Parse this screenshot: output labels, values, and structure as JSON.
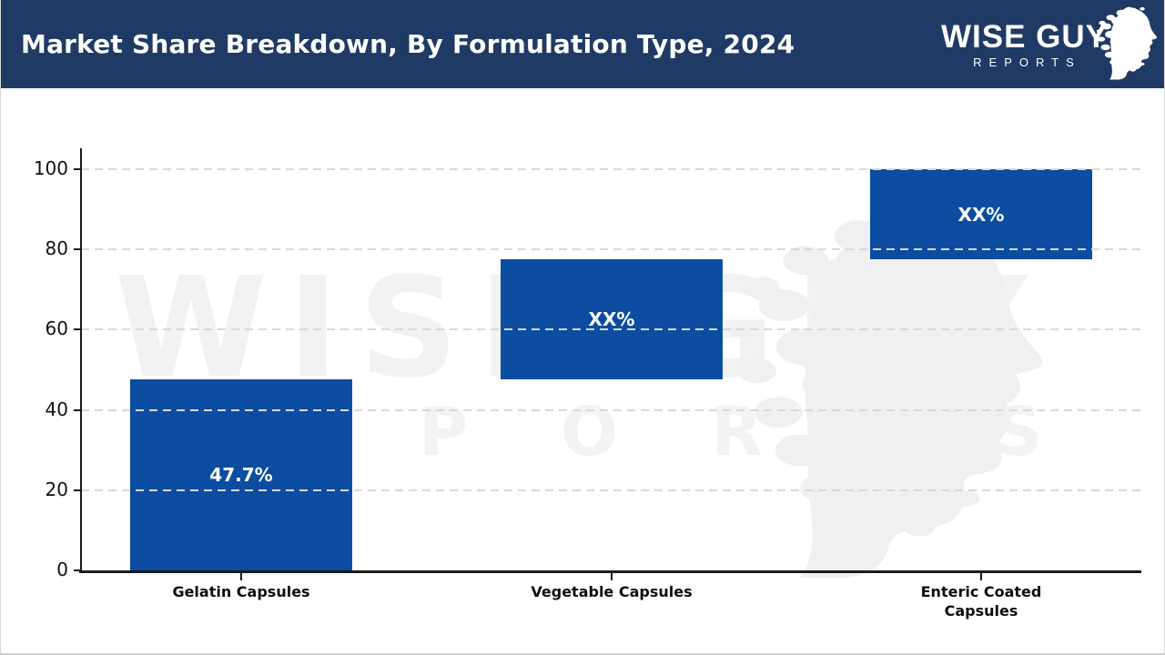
{
  "header": {
    "title": "Market Share Breakdown, By Formulation Type, 2024",
    "brand": {
      "wordmark": "WISE GUY",
      "subtext": "REPORTS"
    }
  },
  "watermark": {
    "wordmark": "WISE GUY",
    "subtext": "R E P O R T S"
  },
  "chart_data": {
    "type": "bar",
    "variant": "stepped-breakdown-waterfall",
    "title": "Market Share Breakdown, By Formulation Type, 2024",
    "categories": [
      "Gelatin Capsules",
      "Vegetable Capsules",
      "Enteric Coated Capsules"
    ],
    "category_display_lines": [
      [
        "Gelatin Capsules"
      ],
      [
        "Vegetable Capsules"
      ],
      [
        "Enteric Coated",
        "Capsules"
      ]
    ],
    "bars": [
      {
        "category": "Gelatin Capsules",
        "value_label": "47.7%",
        "base": 0,
        "top": 47.7
      },
      {
        "category": "Vegetable Capsules",
        "value_label": "XX%",
        "base": 47.7,
        "top": 77.5
      },
      {
        "category": "Enteric Coated Capsules",
        "value_label": "XX%",
        "base": 77.5,
        "top": 100
      }
    ],
    "ylim": [
      0,
      100
    ],
    "yticks": [
      0,
      20,
      40,
      60,
      80,
      100
    ],
    "xlabel": "",
    "ylabel": "",
    "grid": "horizontal-dashed",
    "legend": "none",
    "colors": {
      "bar": "#0c4da2",
      "bar_label": "#ffffff",
      "grid": "#d9d9d9",
      "axis": "#1a1a1a",
      "tick_label": "#111111",
      "header_bg": "#1f3a64",
      "header_text": "#ffffff",
      "watermark": "#f2f2f2"
    }
  }
}
